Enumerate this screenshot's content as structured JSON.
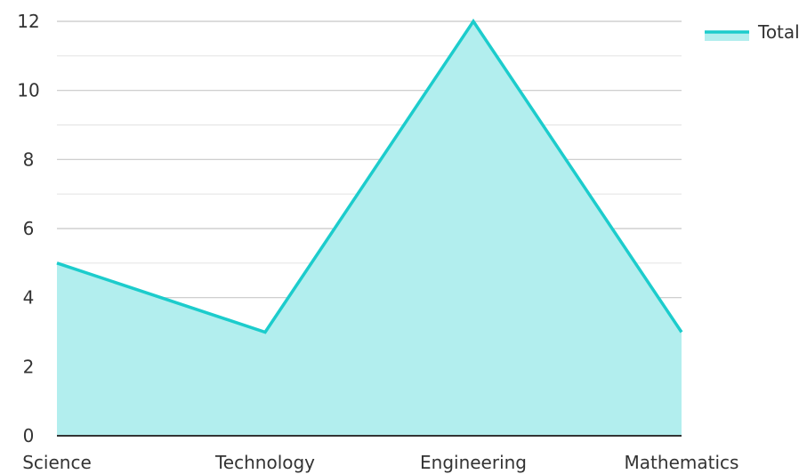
{
  "chart_data": {
    "type": "area",
    "categories": [
      "Science",
      "Technology",
      "Engineering",
      "Mathematics"
    ],
    "series": [
      {
        "name": "Total",
        "values": [
          5,
          3,
          12,
          3
        ]
      }
    ],
    "ylim": [
      0,
      12
    ],
    "y_ticks": [
      "0",
      "2",
      "4",
      "6",
      "8",
      "10",
      "12"
    ],
    "grid": true,
    "legend": {
      "position": "top-right",
      "label": "Total"
    },
    "colors": {
      "line": "#1ccccc",
      "fill": "#b2eeee",
      "grid_major": "#c8c8c8",
      "grid_minor": "#e6e6e6",
      "axis": "#333333"
    }
  }
}
